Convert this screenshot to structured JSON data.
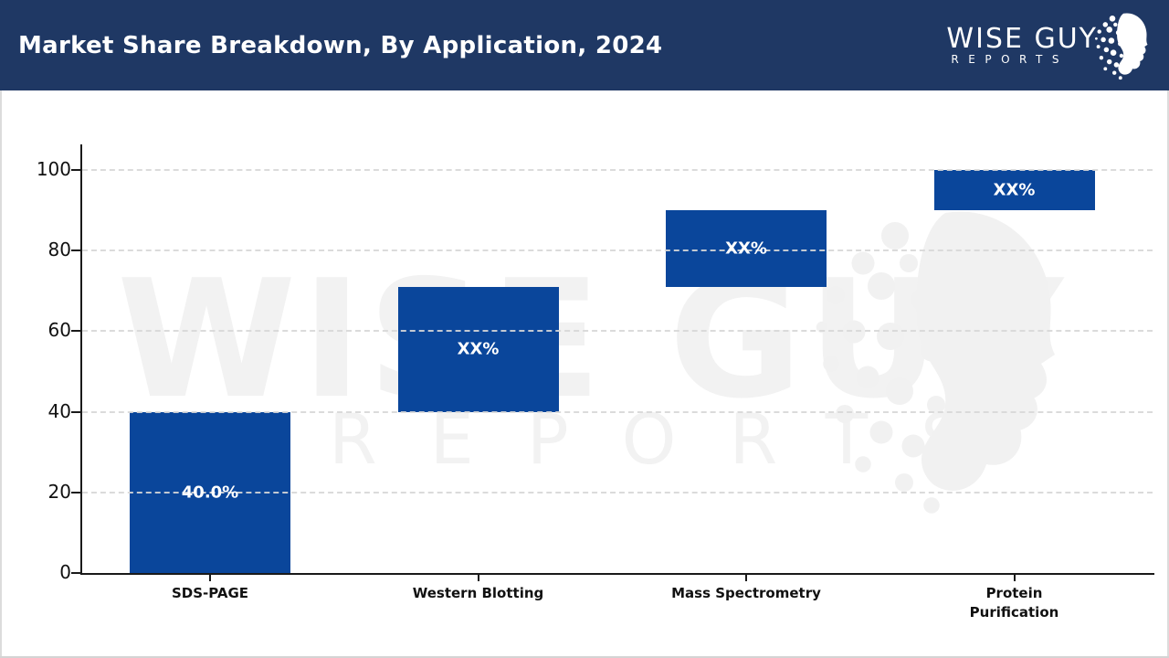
{
  "header": {
    "title": "Market Share Breakdown, By Application, 2024",
    "logo": {
      "line1": "WISE GUY",
      "line2": "REPORTS"
    }
  },
  "watermark": {
    "line1": "WISE GUY",
    "line2": "REPORTS"
  },
  "chart_data": {
    "type": "bar",
    "subtype": "waterfall",
    "title": "Market Share Breakdown, By Application, 2024",
    "categories": [
      "SDS-PAGE",
      "Western Blotting",
      "Mass Spectrometry",
      "Protein Purification"
    ],
    "categories_display": [
      "SDS-PAGE",
      "Western Blotting",
      "Mass Spectrometry",
      "Protein\nPurification"
    ],
    "segments": [
      [
        0,
        40
      ],
      [
        40,
        71
      ],
      [
        71,
        90
      ],
      [
        90,
        100
      ]
    ],
    "values_pct": [
      40,
      31,
      19,
      10
    ],
    "bar_labels": [
      "40.0%",
      "XX%",
      "XX%",
      "XX%"
    ],
    "ylim": [
      0,
      100
    ],
    "yticks": [
      0,
      20,
      40,
      60,
      80,
      100
    ],
    "grid": "horizontal-dashed",
    "legend": "none",
    "bar_color": "#0a469b",
    "bar_label_color": "#ffffff",
    "grid_color": "#d8d8d8",
    "axis_color": "#1a1a1a"
  },
  "colors": {
    "header_bg": "#1f3864",
    "page_bg": "#ffffff",
    "watermark": "#f2f2f2",
    "edge": "#dcdcdc"
  }
}
